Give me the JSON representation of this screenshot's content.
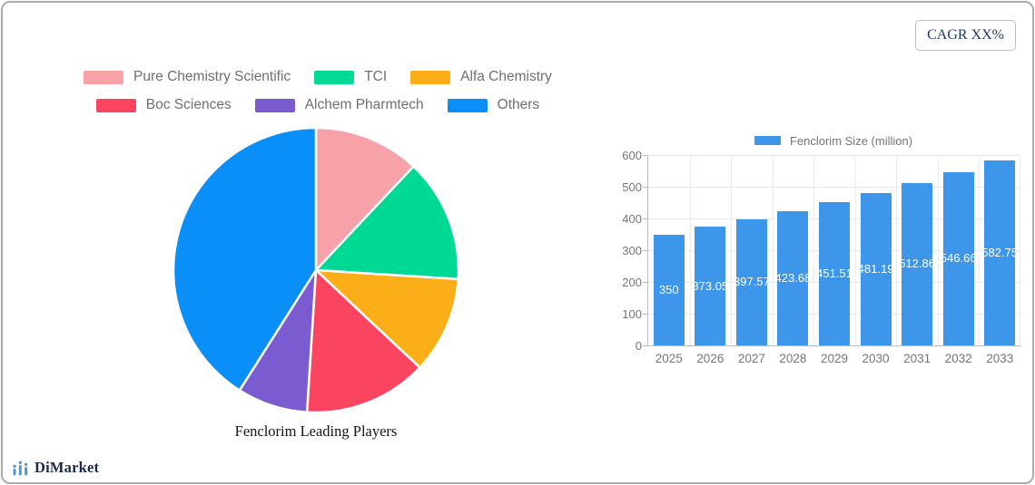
{
  "badge": {
    "label": "CAGR XX%"
  },
  "footer": {
    "brand": "DiMarket"
  },
  "chart_data": [
    {
      "id": "leading-players-pie",
      "type": "pie",
      "title": "Fenclorim Leading Players",
      "labels": [
        "Pure Chemistry Scientific",
        "TCI",
        "Alfa Chemistry",
        "Boc Sciences",
        "Alchem Pharmtech",
        "Others"
      ],
      "values_percent": [
        12,
        14,
        11,
        14,
        8,
        41
      ],
      "colors": [
        "#F7A2A8",
        "#00D993",
        "#FBAE17",
        "#FB4560",
        "#7A5CD0",
        "#0A8FF9"
      ],
      "start_angle_deg": 0,
      "direction": "clockwise",
      "legend_position": "top",
      "legend_rows": [
        [
          0,
          1,
          2
        ],
        [
          3,
          4,
          5
        ]
      ]
    },
    {
      "id": "fenclorim-size-bar",
      "type": "bar",
      "categories": [
        "2025",
        "2026",
        "2027",
        "2028",
        "2029",
        "2030",
        "2031",
        "2032",
        "2033"
      ],
      "series": [
        {
          "name": "Fenclorim Size (million)",
          "color": "#3E96EB",
          "values": [
            350,
            373.05,
            397.57,
            423.68,
            451.51,
            481.19,
            512.86,
            546.66,
            582.75
          ]
        }
      ],
      "value_labels": [
        "350",
        "373.05",
        "397.57",
        "423.68",
        "451.51",
        "481.19",
        "512.86",
        "546.66",
        "582.75"
      ],
      "ylim": [
        0,
        600
      ],
      "yticks": [
        0,
        100,
        200,
        300,
        400,
        500,
        600
      ],
      "grid": true,
      "legend_position": "top",
      "value_label_style": "inside-center-white"
    }
  ]
}
